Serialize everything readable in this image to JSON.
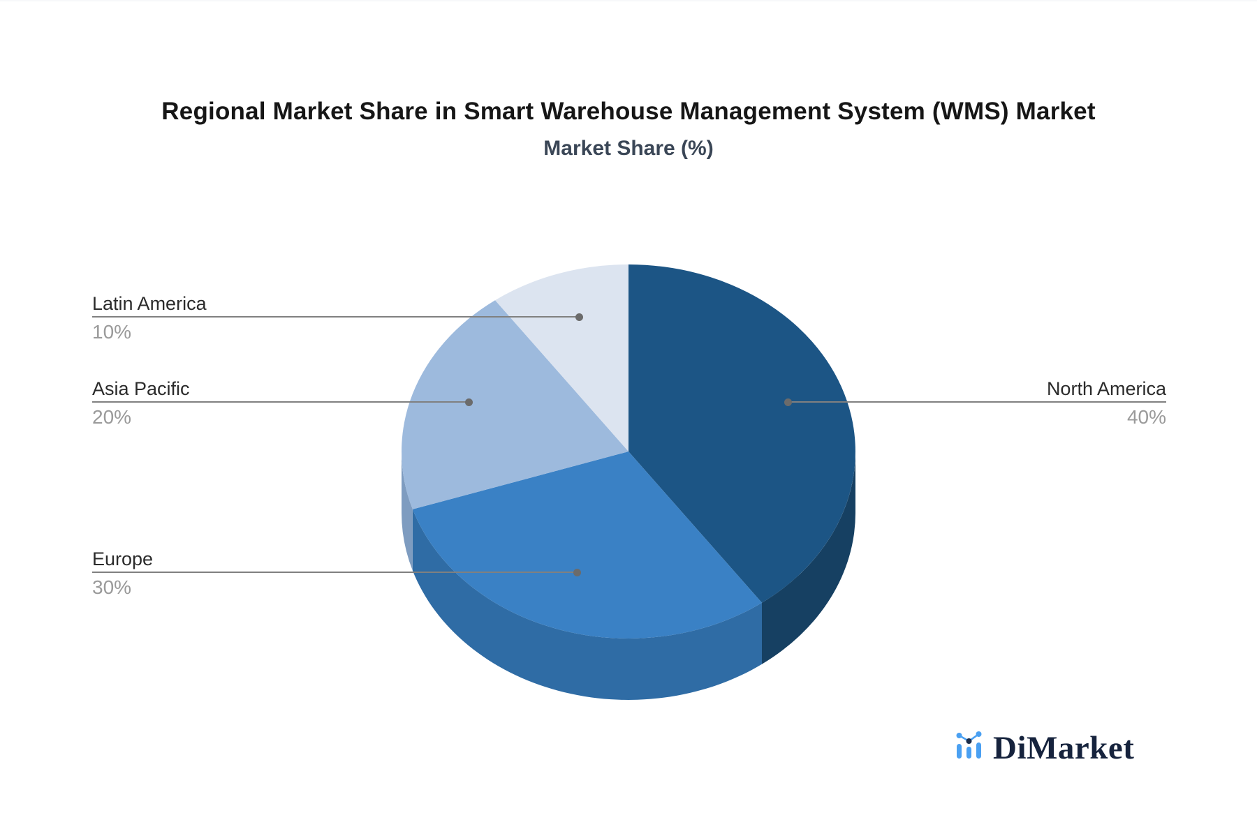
{
  "chart_data": {
    "type": "pie",
    "style": "3d",
    "title": "Regional Market Share in Smart Warehouse Management System (WMS) Market",
    "subtitle": "Market Share (%)",
    "unit": "percent",
    "start_angle_deg": 0,
    "direction": "clockwise",
    "legend_position": "callouts",
    "series": [
      {
        "label": "North America",
        "value": 40,
        "display": "40%",
        "color": "#1C5585",
        "side_color": "#164062"
      },
      {
        "label": "Europe",
        "value": 30,
        "display": "30%",
        "color": "#3A81C5",
        "side_color": "#2F6CA5"
      },
      {
        "label": "Asia Pacific",
        "value": 20,
        "display": "20%",
        "color": "#9DBADD",
        "side_color": "#7E9CC0"
      },
      {
        "label": "Latin America",
        "value": 10,
        "display": "10%",
        "color": "#DCE4F0",
        "side_color": "#B9C7DB"
      }
    ],
    "callout_line_color": "#808080",
    "callout_dot_color": "#6B6B6B",
    "label_color": "#2B2B2B",
    "value_color": "#9A9A9A"
  },
  "brand": {
    "logo_text": "DiMarket",
    "logo_text_color": "#16233D",
    "icon_color": "#4AA0F2",
    "icon_mid_dot_color": "#1B2C4A"
  }
}
